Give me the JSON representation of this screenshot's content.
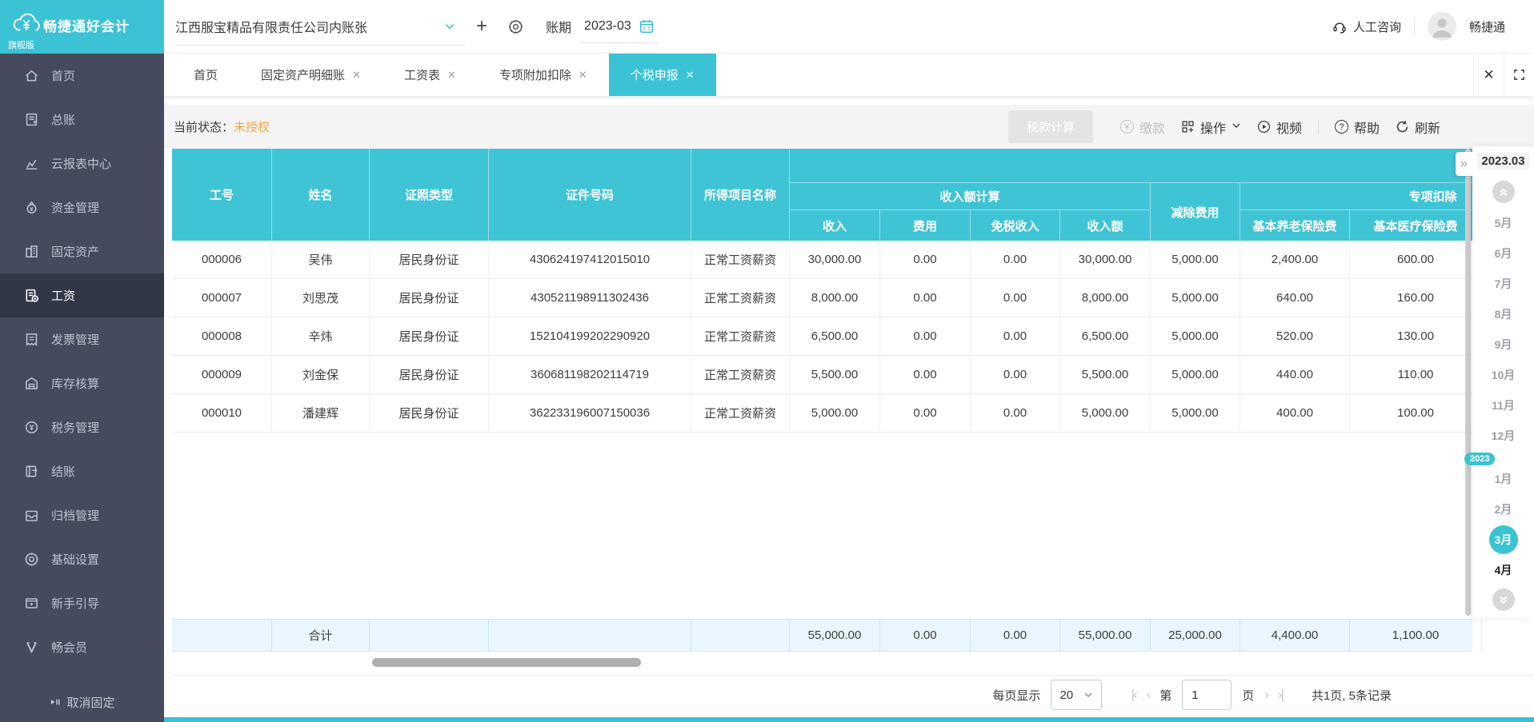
{
  "colors": {
    "accent": "#3bc2d4",
    "warning": "#f7a73d",
    "sidebar_bg": "#454b5c"
  },
  "app": {
    "name": "畅捷通好会计",
    "edition": "旗舰版"
  },
  "topbar": {
    "company": "江西服宝精品有限责任公司内账张",
    "period_label": "账期",
    "period_value": "2023-03",
    "support_label": "人工咨询",
    "username": "畅捷通"
  },
  "tabs": [
    {
      "label": "首页",
      "closable": false,
      "active": false
    },
    {
      "label": "固定资产明细账",
      "closable": true,
      "active": false
    },
    {
      "label": "工资表",
      "closable": true,
      "active": false
    },
    {
      "label": "专项附加扣除",
      "closable": true,
      "active": false
    },
    {
      "label": "个税申报",
      "closable": true,
      "active": true
    }
  ],
  "toolbar": {
    "status_label": "当前状态：",
    "status_value": "未授权",
    "tax_calc_label": "税款计算",
    "pay_label": "缴款",
    "operate_label": "操作",
    "video_label": "视频",
    "help_label": "帮助",
    "refresh_label": "刷新"
  },
  "sidebar": {
    "items": [
      {
        "key": "home",
        "label": "首页",
        "icon": "home-icon",
        "active": false
      },
      {
        "key": "general-ledger",
        "label": "总账",
        "icon": "ledger-icon",
        "active": false
      },
      {
        "key": "cloud-reports",
        "label": "云报表中心",
        "icon": "report-chart-icon",
        "active": false
      },
      {
        "key": "funds",
        "label": "资金管理",
        "icon": "money-bag-icon",
        "active": false
      },
      {
        "key": "fixed-assets",
        "label": "固定资产",
        "icon": "building-icon",
        "active": false
      },
      {
        "key": "salary",
        "label": "工资",
        "icon": "salary-doc-icon",
        "active": true
      },
      {
        "key": "invoices",
        "label": "发票管理",
        "icon": "invoice-icon",
        "active": false
      },
      {
        "key": "inventory",
        "label": "库存核算",
        "icon": "warehouse-icon",
        "active": false
      },
      {
        "key": "tax",
        "label": "税务管理",
        "icon": "tax-coin-icon",
        "active": false
      },
      {
        "key": "closing",
        "label": "结账",
        "icon": "closing-book-icon",
        "active": false
      },
      {
        "key": "archive",
        "label": "归档管理",
        "icon": "archive-box-icon",
        "active": false
      },
      {
        "key": "settings",
        "label": "基础设置",
        "icon": "gear-icon",
        "active": false
      },
      {
        "key": "guide",
        "label": "新手引导",
        "icon": "video-guide-icon",
        "active": false
      },
      {
        "key": "member",
        "label": "畅会员",
        "icon": "member-v-icon",
        "active": false
      }
    ],
    "unpin_label": "取消固定"
  },
  "table": {
    "headers": {
      "emp_no": "工号",
      "name": "姓名",
      "id_type": "证照类型",
      "id_no": "证件号码",
      "item": "所得项目名称",
      "group_income": "收入额计算",
      "income": "收入",
      "fee": "费用",
      "tax_free": "免税收入",
      "income_amt": "收入额",
      "deduction": "减除费用",
      "group_special": "专项扣除",
      "pension": "基本养老保险费",
      "medical": "基本医疗保险费"
    },
    "rows": [
      {
        "emp_no": "000006",
        "name": "吴伟",
        "id_type": "居民身份证",
        "id_no": "430624197412015010",
        "item": "正常工资薪资",
        "income": "30,000.00",
        "fee": "0.00",
        "tax_free": "0.00",
        "income_amt": "30,000.00",
        "deduction": "5,000.00",
        "pension": "2,400.00",
        "medical": "600.00"
      },
      {
        "emp_no": "000007",
        "name": "刘思茂",
        "id_type": "居民身份证",
        "id_no": "430521198911302436",
        "item": "正常工资薪资",
        "income": "8,000.00",
        "fee": "0.00",
        "tax_free": "0.00",
        "income_amt": "8,000.00",
        "deduction": "5,000.00",
        "pension": "640.00",
        "medical": "160.00"
      },
      {
        "emp_no": "000008",
        "name": "辛炜",
        "id_type": "居民身份证",
        "id_no": "152104199202290920",
        "item": "正常工资薪资",
        "income": "6,500.00",
        "fee": "0.00",
        "tax_free": "0.00",
        "income_amt": "6,500.00",
        "deduction": "5,000.00",
        "pension": "520.00",
        "medical": "130.00"
      },
      {
        "emp_no": "000009",
        "name": "刘金保",
        "id_type": "居民身份证",
        "id_no": "360681198202114719",
        "item": "正常工资薪资",
        "income": "5,500.00",
        "fee": "0.00",
        "tax_free": "0.00",
        "income_amt": "5,500.00",
        "deduction": "5,000.00",
        "pension": "440.00",
        "medical": "110.00"
      },
      {
        "emp_no": "000010",
        "name": "潘建辉",
        "id_type": "居民身份证",
        "id_no": "362233196007150036",
        "item": "正常工资薪资",
        "income": "5,000.00",
        "fee": "0.00",
        "tax_free": "0.00",
        "income_amt": "5,000.00",
        "deduction": "5,000.00",
        "pension": "400.00",
        "medical": "100.00"
      }
    ],
    "total": {
      "label": "合计",
      "income": "55,000.00",
      "fee": "0.00",
      "tax_free": "0.00",
      "income_amt": "55,000.00",
      "deduction": "25,000.00",
      "pension": "4,400.00",
      "medical": "1,100.00"
    }
  },
  "pagination": {
    "per_page_label": "每页显示",
    "per_page_value": "20",
    "page_prefix": "第",
    "page_value": "1",
    "page_suffix": "页",
    "summary": "共1页, 5条记录"
  },
  "month_panel": {
    "current": "2023.03",
    "items": [
      {
        "type": "month",
        "label": "5月"
      },
      {
        "type": "month",
        "label": "6月"
      },
      {
        "type": "month",
        "label": "7月"
      },
      {
        "type": "month",
        "label": "8月"
      },
      {
        "type": "month",
        "label": "9月"
      },
      {
        "type": "month",
        "label": "10月"
      },
      {
        "type": "month",
        "label": "11月"
      },
      {
        "type": "month",
        "label": "12月"
      },
      {
        "type": "year",
        "label": "2023"
      },
      {
        "type": "month",
        "label": "1月"
      },
      {
        "type": "month",
        "label": "2月"
      },
      {
        "type": "month",
        "label": "3月",
        "active": true
      },
      {
        "type": "month",
        "label": "4月",
        "emphasis": true
      }
    ]
  }
}
